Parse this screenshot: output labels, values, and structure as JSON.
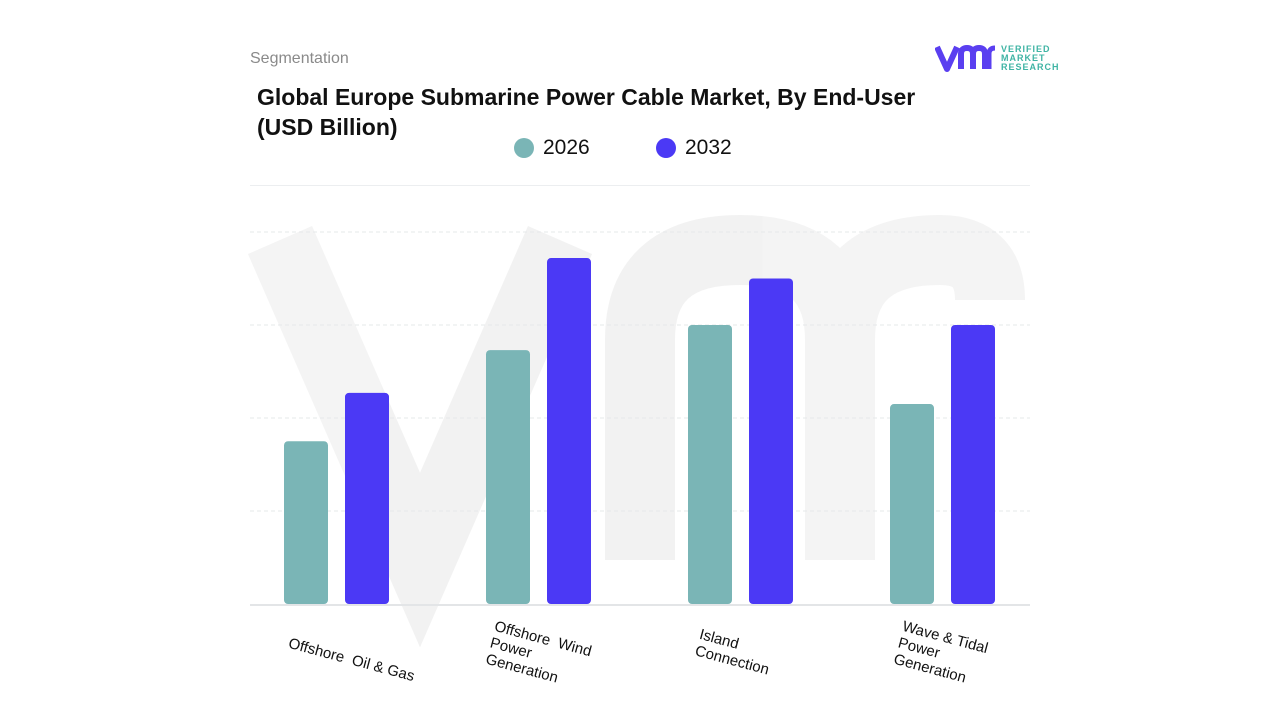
{
  "header": {
    "segment_label": "Segmentation",
    "logo_text": [
      "VERIFIED",
      "MARKET",
      "RESEARCH"
    ]
  },
  "chart_data": {
    "type": "bar",
    "title": "Global Europe Submarine Power Cable Market, By End-User (USD Billion)",
    "categories": [
      "Offshore  Oil & Gas",
      "Offshore  Wind Power Generation",
      "Island Connection",
      "Wave & Tidal Power Generation"
    ],
    "series": [
      {
        "name": "2026",
        "color": "#7ab5b6",
        "values": [
          1.75,
          2.73,
          3.0,
          2.15
        ]
      },
      {
        "name": "2032",
        "color": "#4b39f5",
        "values": [
          2.27,
          3.72,
          3.5,
          3.0
        ]
      }
    ],
    "ylim": [
      0,
      4
    ],
    "grid": true,
    "legend": "top",
    "xlabel": "",
    "ylabel": ""
  }
}
